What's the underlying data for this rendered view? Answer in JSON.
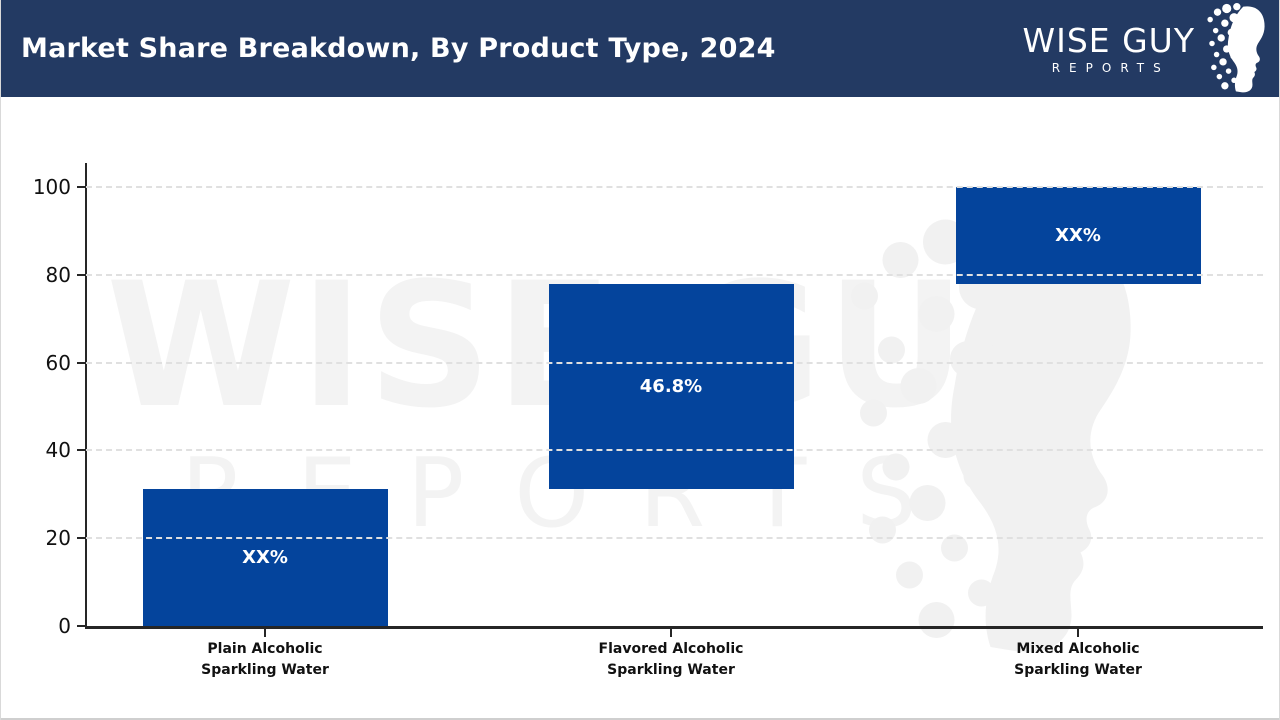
{
  "header": {
    "title": "Market Share Breakdown, By Product Type, 2024",
    "logo": {
      "brand_line1": "WISE GUY",
      "brand_line2": "REPORTS"
    }
  },
  "watermark": {
    "line1": "WISE GUY",
    "line2": "REPORTS"
  },
  "colors": {
    "header_bg": "#233a63",
    "bar": "#04449c",
    "gridline": "#e0e0e0",
    "axis": "#262626",
    "bar_label": "#ffffff",
    "watermark": "#f3f3f3"
  },
  "chart_data": {
    "type": "bar",
    "variant": "waterfall",
    "title": "Market Share Breakdown, By Product Type, 2024",
    "xlabel": "",
    "ylabel": "",
    "ylim": [
      0,
      100
    ],
    "yticks": [
      0,
      20,
      40,
      60,
      80,
      100
    ],
    "grid": "horizontal-dashed",
    "legend": "none",
    "categories": [
      "Plain Alcoholic Sparkling Water",
      "Flavored Alcoholic Sparkling Water",
      "Mixed Alcoholic Sparkling Water"
    ],
    "category_lines": [
      [
        "Plain Alcoholic",
        "Sparkling Water"
      ],
      [
        "Flavored Alcoholic",
        "Sparkling Water"
      ],
      [
        "Mixed Alcoholic",
        "Sparkling Water"
      ]
    ],
    "bars": [
      {
        "category": "Plain Alcoholic Sparkling Water",
        "start": 0,
        "end": 31.2,
        "label": "XX%"
      },
      {
        "category": "Flavored Alcoholic Sparkling Water",
        "start": 31.2,
        "end": 78,
        "label": "46.8%"
      },
      {
        "category": "Mixed Alcoholic Sparkling Water",
        "start": 78,
        "end": 100,
        "label": "XX%"
      }
    ]
  }
}
